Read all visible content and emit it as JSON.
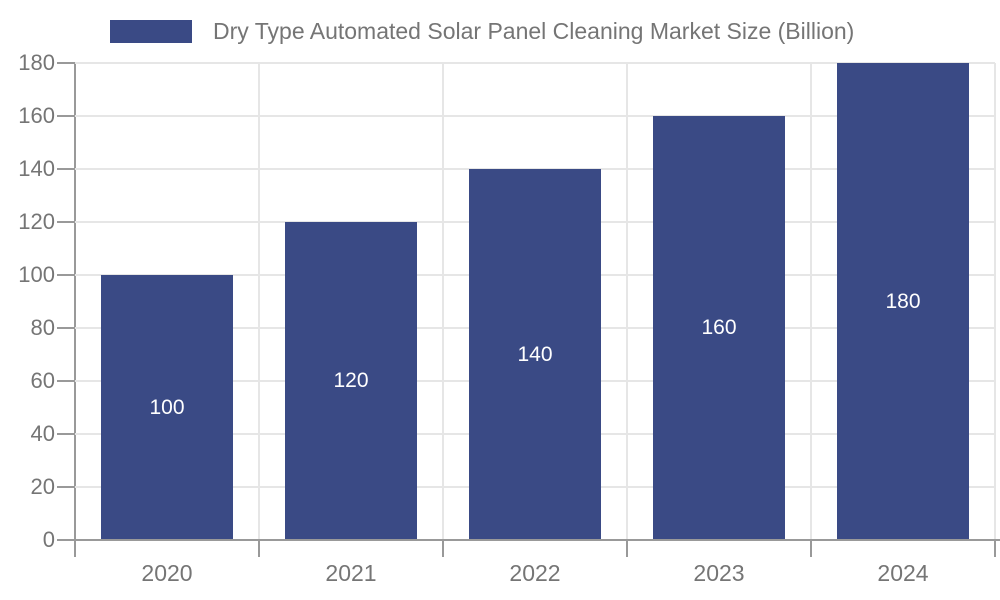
{
  "legend": {
    "label": "Dry Type Automated Solar Panel Cleaning Market Size (Billion)"
  },
  "chart_data": {
    "type": "bar",
    "title": "Dry Type Automated Solar Panel Cleaning Market Size (Billion)",
    "categories": [
      "2020",
      "2021",
      "2022",
      "2023",
      "2024"
    ],
    "values": [
      100,
      120,
      140,
      160,
      180
    ],
    "bar_labels": [
      "100",
      "120",
      "140",
      "160",
      "180"
    ],
    "xlabel": "",
    "ylabel": "",
    "ylim": [
      0,
      180
    ],
    "yticks": [
      0,
      20,
      40,
      60,
      80,
      100,
      120,
      140,
      160,
      180
    ],
    "grid": true,
    "legend_position": "top-left",
    "value_label_position": "inside-center"
  },
  "colors": {
    "bar": "#3A4A85",
    "bar_value_text": "#FFFFFF",
    "axis_line": "#999999",
    "gridline": "#E6E6E6",
    "tick_label_text": "#757575",
    "background": "#FFFFFF"
  }
}
